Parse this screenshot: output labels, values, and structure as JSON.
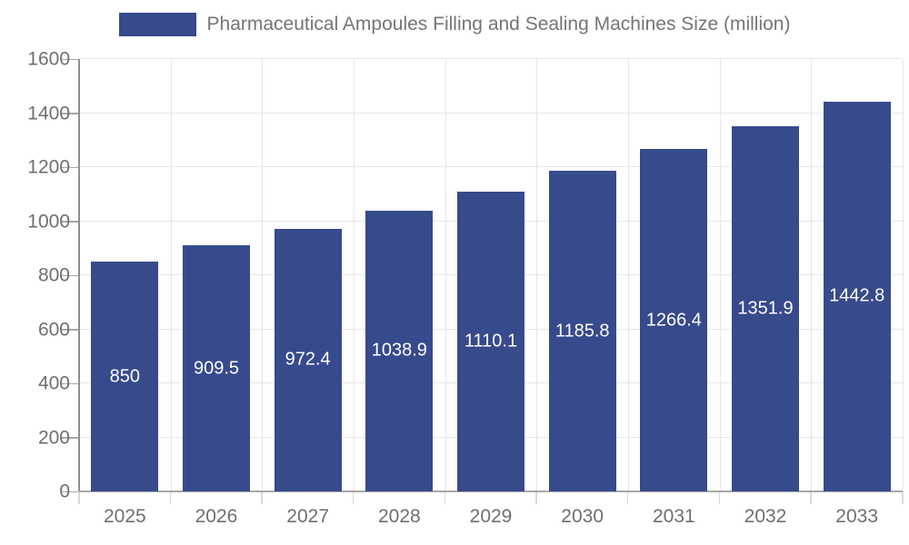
{
  "legend": {
    "label": "Pharmaceutical Ampoules Filling and Sealing Machines Size (million)"
  },
  "chart_data": {
    "type": "bar",
    "title": "Pharmaceutical Ampoules Filling and Sealing Machines Size (million)",
    "categories": [
      "2025",
      "2026",
      "2027",
      "2028",
      "2029",
      "2030",
      "2031",
      "2032",
      "2033"
    ],
    "values": [
      850,
      909.5,
      972.4,
      1038.9,
      1110.1,
      1185.8,
      1266.4,
      1351.9,
      1442.8
    ],
    "value_labels": [
      "850",
      "909.5",
      "972.4",
      "1038.9",
      "1110.1",
      "1185.8",
      "1266.4",
      "1351.9",
      "1442.8"
    ],
    "xlabel": "",
    "ylabel": "",
    "ylim": [
      0,
      1600
    ],
    "ytick_step": 200,
    "yticks": [
      0,
      200,
      400,
      600,
      800,
      1000,
      1200,
      1400,
      1600
    ],
    "grid": true,
    "legend_position": "top-center",
    "colors": {
      "bar": "#364a8c",
      "bar_label": "#ffffff",
      "axis_text": "#6f6f6f",
      "legend_text": "#757575",
      "grid_line": "#e6e6e6",
      "axis_line": "#a8a8a8",
      "background": "#ffffff"
    }
  }
}
